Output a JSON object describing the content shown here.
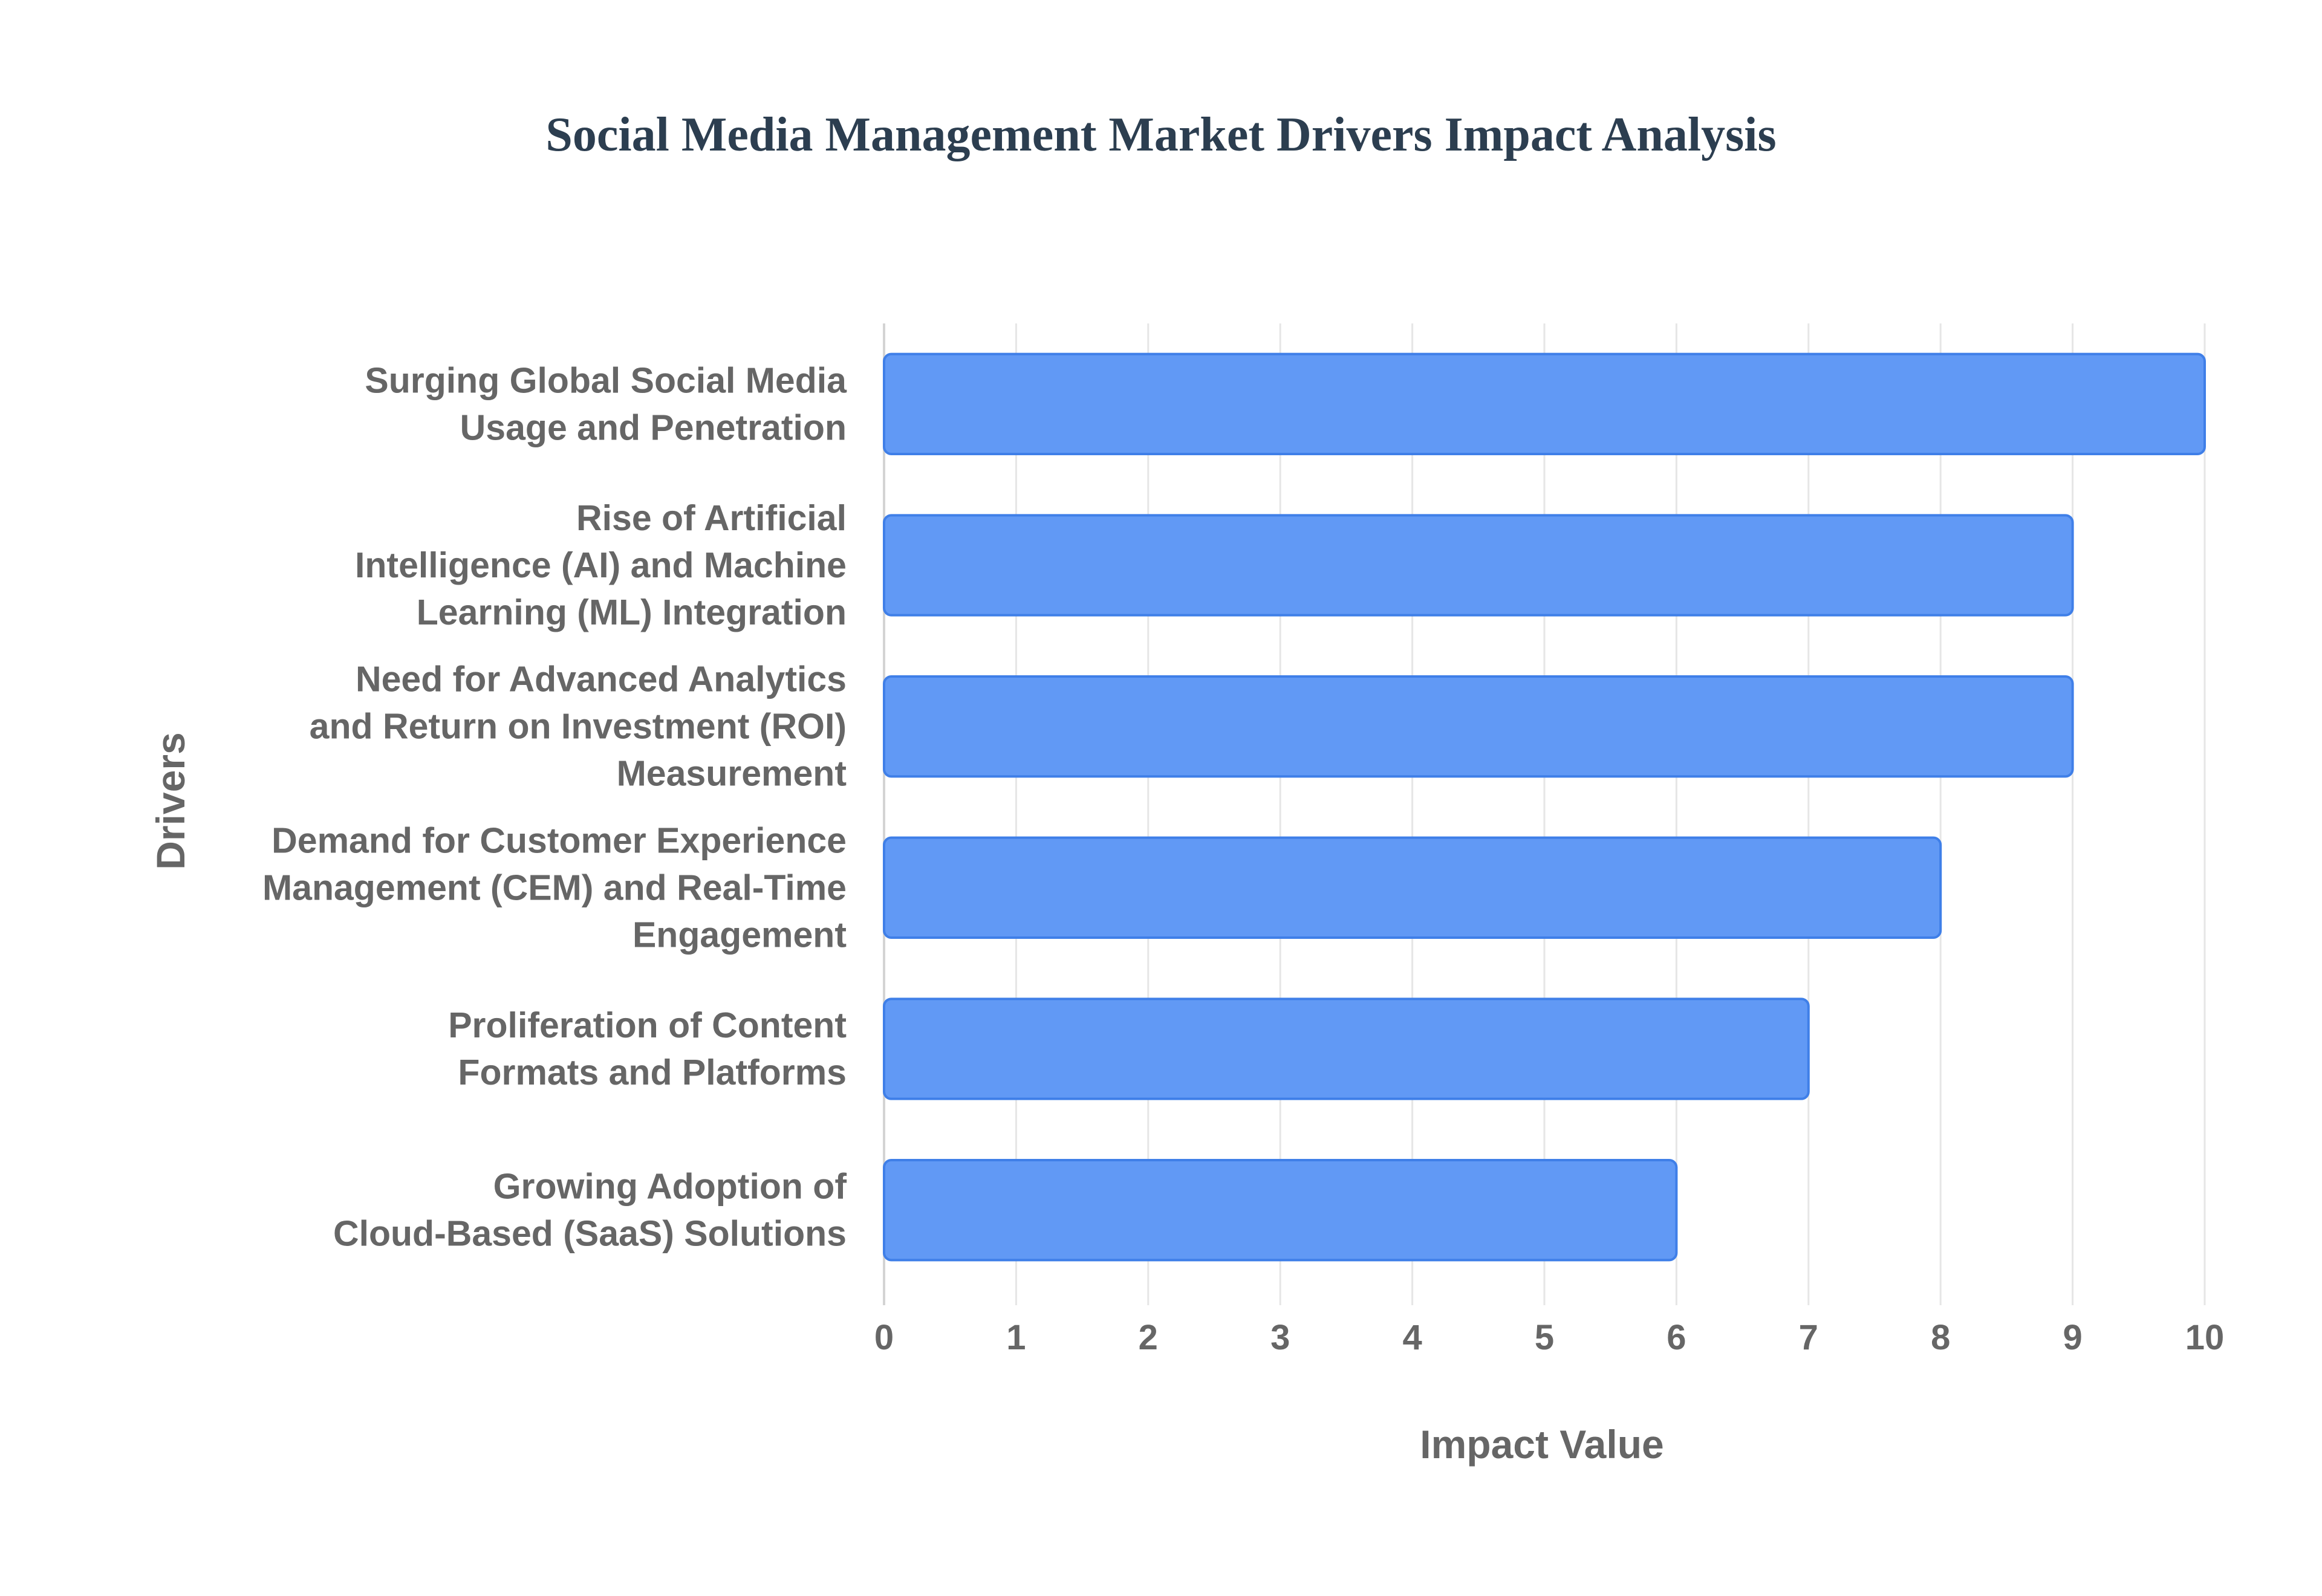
{
  "chart_data": {
    "type": "bar",
    "orientation": "horizontal",
    "title": "Social Media Management Market Drivers Impact Analysis",
    "xlabel": "Impact Value",
    "ylabel": "Drivers",
    "xlim": [
      0,
      10
    ],
    "x_ticks": [
      "0",
      "1",
      "2",
      "3",
      "4",
      "5",
      "6",
      "7",
      "8",
      "9",
      "10"
    ],
    "grid": true,
    "legend": "none",
    "bar_color": "#6199f5",
    "bar_border_color": "#3f7fe8",
    "categories": [
      [
        "Surging Global Social Media",
        "Usage and Penetration"
      ],
      [
        "Rise of Artificial",
        "Intelligence (AI) and Machine",
        "Learning (ML) Integration"
      ],
      [
        "Need for Advanced Analytics",
        "and Return on Investment (ROI)",
        "Measurement"
      ],
      [
        "Demand for Customer Experience",
        "Management (CEM) and Real-Time",
        "Engagement"
      ],
      [
        "Proliferation of Content",
        "Formats and Platforms"
      ],
      [
        "Growing Adoption of",
        "Cloud-Based (SaaS) Solutions"
      ]
    ],
    "values": [
      10,
      9,
      9,
      8,
      7,
      6
    ]
  }
}
